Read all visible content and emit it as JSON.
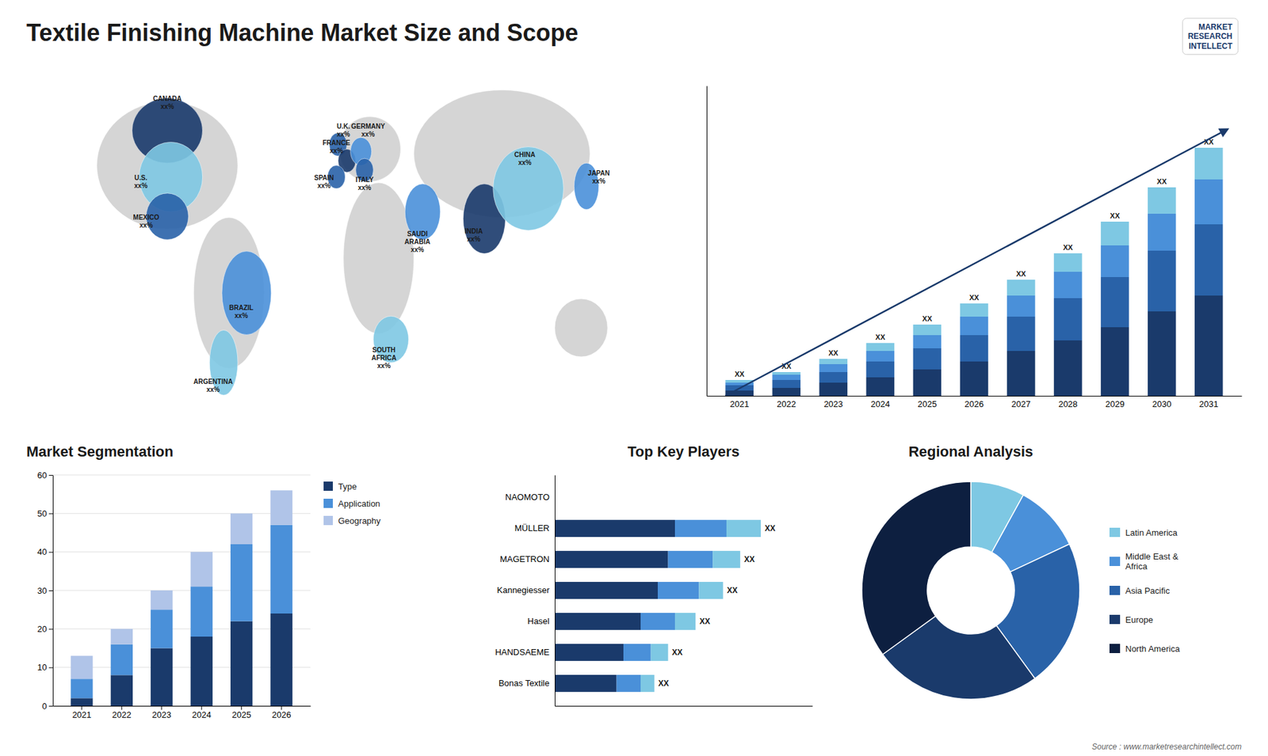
{
  "chart_data": [
    {
      "type": "map",
      "title": "Textile Finishing Machine Market Size and Scope",
      "annotations": [
        "MARKET\nRESEARCH\nINTELLECT",
        "Source : www.marketresearchintellect.com"
      ],
      "categories": [
        "CANADA\nxx%",
        "U.S.\nxx%",
        "MEXICO\nxx%",
        "BRAZIL\nxx%",
        "ARGENTINA\nxx%",
        "U.K.\nxx%",
        "FRANCE\nxx%",
        "SPAIN\nxx%",
        "GERMANY\nxx%",
        "ITALY\nxx%",
        "SOUTH\nAFRICA\nxx%",
        "SAUDI\nARABIA\nxx%",
        "INDIA\nxx%",
        "CHINA\nxx%",
        "JAPAN\nxx%"
      ],
      "colors": [
        "#1a3a6b",
        "#7ec8e3",
        "#2962a8",
        "#4a90d9",
        "#7ec8e3",
        "#2962a8",
        "#1a3a6b",
        "#2962a8",
        "#4a90d9",
        "#2962a8",
        "#7ec8e3",
        "#4a90d9",
        "#1a3a6b",
        "#7ec8e3",
        "#4a90d9"
      ]
    },
    {
      "type": "bar",
      "stacked": true,
      "categories": [
        "2021",
        "2022",
        "2023",
        "2024",
        "2025",
        "2026",
        "2027",
        "2028",
        "2029",
        "2030",
        "2031"
      ],
      "series": [
        {
          "color": "#1a3a6b",
          "values": [
            2,
            3,
            5,
            7,
            10,
            13,
            17,
            21,
            26,
            32,
            38
          ]
        },
        {
          "color": "#2962a8",
          "values": [
            2,
            3,
            4,
            6,
            8,
            10,
            13,
            16,
            19,
            23,
            27
          ]
        },
        {
          "color": "#4a90d9",
          "values": [
            1,
            2,
            3,
            4,
            5,
            7,
            8,
            10,
            12,
            14,
            17
          ]
        },
        {
          "color": "#7ec8e3",
          "values": [
            1,
            1,
            2,
            3,
            4,
            5,
            6,
            7,
            9,
            10,
            12
          ]
        }
      ],
      "ylim": [
        0,
        117.5
      ],
      "tick_labels": "x",
      "annotations": [
        "XX",
        "XX",
        "XX",
        "XX",
        "XX",
        "XX",
        "XX",
        "XX",
        "XX",
        "XX",
        "XX"
      ]
    },
    {
      "type": "bar",
      "stacked": true,
      "title": "Market Segmentation",
      "categories": [
        "2021",
        "2022",
        "2023",
        "2024",
        "2025",
        "2026"
      ],
      "series": [
        {
          "name": "Type",
          "color": "#1a3a6b",
          "values": [
            2,
            8,
            15,
            18,
            22,
            24
          ]
        },
        {
          "name": "Application",
          "color": "#4a90d9",
          "values": [
            5,
            8,
            10,
            13,
            20,
            23
          ]
        },
        {
          "name": "Geography",
          "color": "#b0c4e8",
          "values": [
            6,
            4,
            5,
            9,
            8,
            9
          ]
        }
      ],
      "ylim": [
        0,
        60
      ],
      "yticks": [
        0,
        10,
        20,
        30,
        40,
        50,
        60
      ],
      "grid": true,
      "legend": "right"
    },
    {
      "type": "bar",
      "stacked": true,
      "orientation": "horizontal",
      "title": "Top Key Players",
      "categories": [
        "NAOMOTO",
        "MÜLLER",
        "MAGETRON",
        "Kannegiesser",
        "Hasel",
        "HANDSAEME",
        "Bonas Textile"
      ],
      "series": [
        {
          "color": "#1a3a6b",
          "values": [
            0,
            35,
            33,
            30,
            25,
            20,
            18
          ]
        },
        {
          "color": "#4a90d9",
          "values": [
            0,
            15,
            13,
            12,
            10,
            8,
            7
          ]
        },
        {
          "color": "#7ec8e3",
          "values": [
            0,
            10,
            8,
            7,
            6,
            5,
            4
          ]
        }
      ],
      "xlim": [
        0,
        75
      ],
      "tick_labels": "y",
      "annotations": [
        "XX",
        "XX",
        "XX",
        "XX",
        "XX",
        "XX"
      ]
    },
    {
      "type": "pie",
      "title": "Regional Analysis",
      "categories": [
        "Latin America",
        "Middle East &\nAfrica",
        "Asia Pacific",
        "Europe",
        "North America"
      ],
      "values": [
        8,
        10,
        22,
        25,
        35
      ],
      "colors": [
        "#7ec8e3",
        "#4a90d9",
        "#2962a8",
        "#1a3a6b",
        "#0d1f40"
      ],
      "legend": "right"
    }
  ]
}
